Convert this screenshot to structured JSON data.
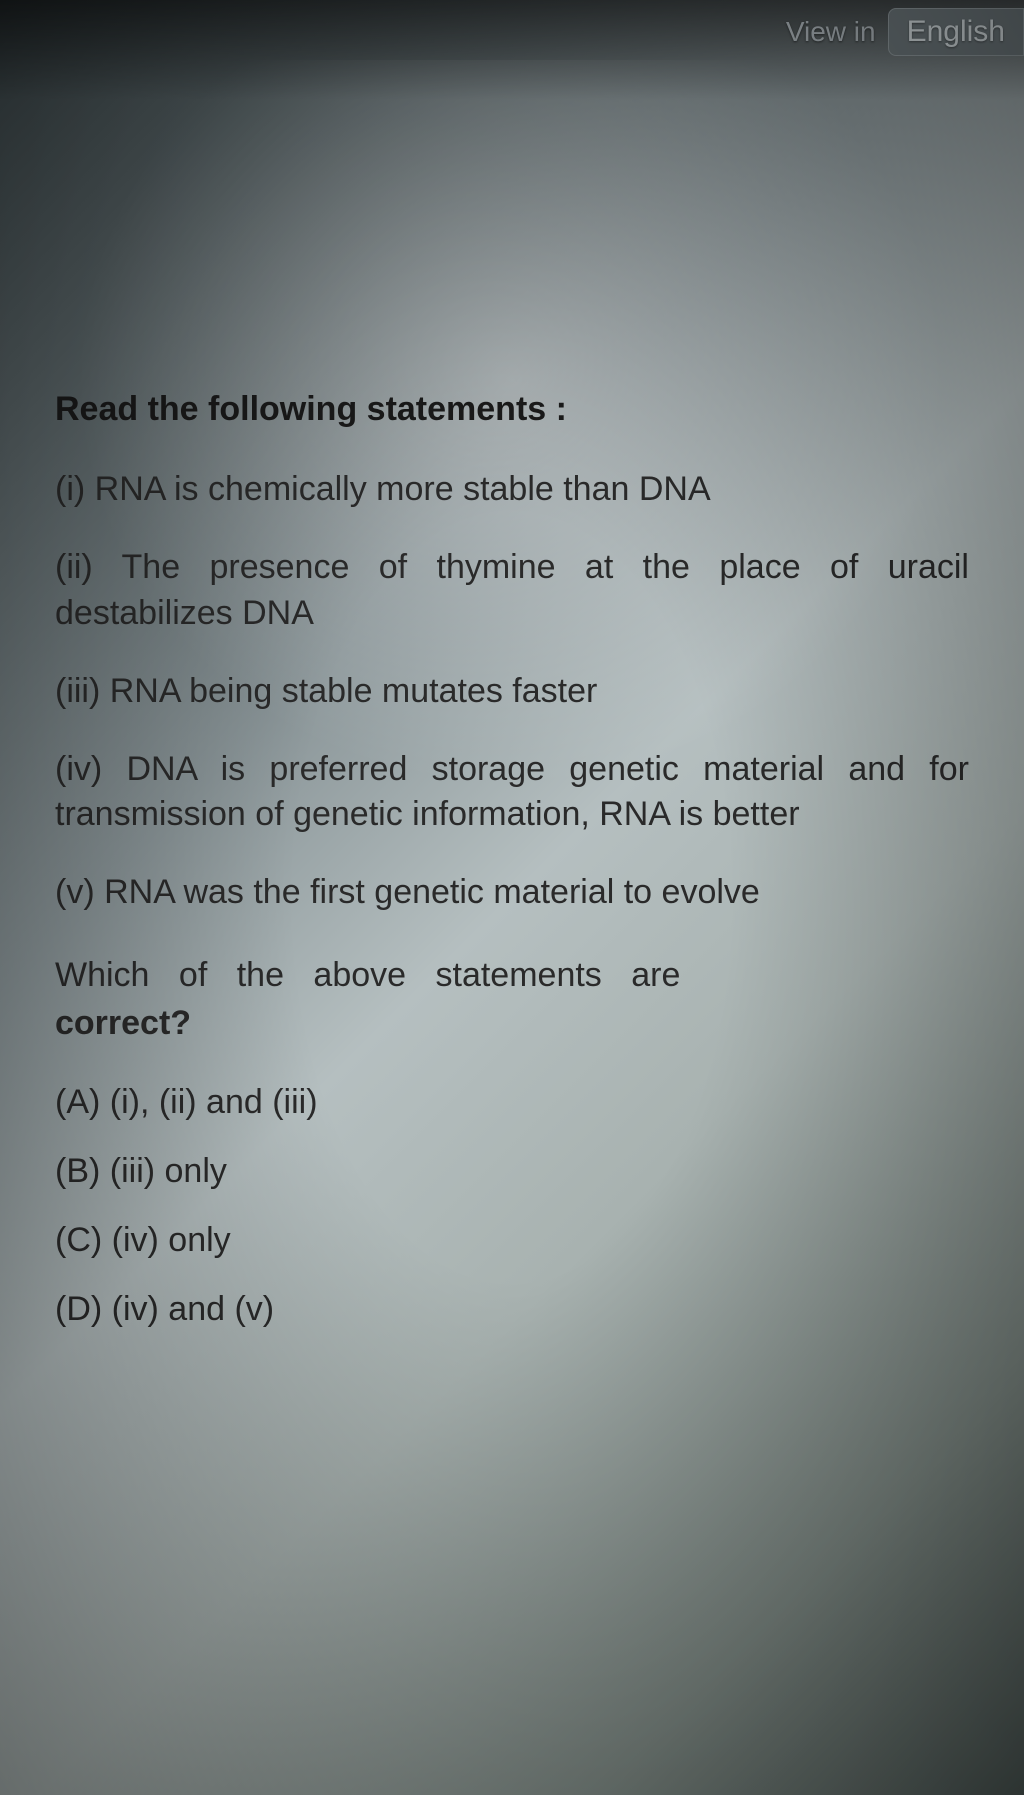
{
  "header": {
    "view_in_label": "View in",
    "language_button": "English"
  },
  "question": {
    "intro": "Read the following statements :",
    "statements": [
      "(i) RNA is chemically more stable than DNA",
      "(ii) The presence of thymine at the place of uracil destabilizes DNA",
      "(iii) RNA being stable mutates faster",
      "(iv) DNA is preferred storage genetic material and for transmission of genetic information, RNA is better",
      "(v) RNA was the first genetic material to evolve"
    ],
    "which_line1": "Which of the above statements are",
    "which_line2": "correct?",
    "options": [
      "(A) (i), (ii) and (iii)",
      "(B) (iii) only",
      "(C) (iv) only",
      "(D) (iv) and (v)"
    ]
  },
  "styling": {
    "body_font": "Verdana",
    "text_color": "#2a2a2a",
    "heading_color": "#1a1a1a",
    "background_gradient_start": "#3a4548",
    "background_gradient_mid": "#b5bfc0",
    "background_gradient_end": "#4a5552",
    "button_bg": "#6a7478",
    "button_text": "#d0d8db",
    "view_in_color": "#a8b0b5",
    "question_fontsize": 34,
    "option_fontsize": 34
  }
}
